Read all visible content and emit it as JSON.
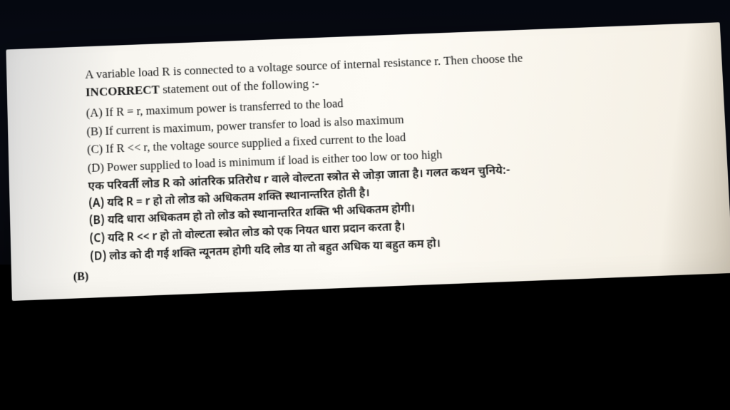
{
  "question": {
    "intro_line1": "A variable load R is connected to a voltage source of internal resistance r. Then choose the",
    "intro_line2_bold": "INCORRECT",
    "intro_line2_rest": " statement out of the following :-",
    "options": {
      "A": "(A) If R = r, maximum power is transferred to the load",
      "B": "(B) If current is maximum, power transfer to load is also maximum",
      "C": "(C) If R << r, the voltage source supplied a fixed current to the load",
      "D": "(D) Power supplied to load is minimum if load is either too low or too high"
    },
    "hindi_intro": "एक परिवर्ती लोड R को आंतरिक प्रतिरोध r वाले वोल्टता स्त्रोत से जोड़ा जाता है। गलत कथन चुनिये:-",
    "hindi_options": {
      "A": "(A) यदि R = r हो तो लोड को अधिकतम शक्ति स्थानान्तरित होती है।",
      "B": "(B) यदि धारा अधिकतम हो तो लोड को स्थानान्तरित शक्ति भी अधिकतम होगी।",
      "C": "(C) यदि R << r हो तो वोल्टता स्त्रोत लोड को एक नियत धारा प्रदान करता है।",
      "D": "(D) लोड को दी गई शक्ति न्यूनतम होगी यदि लोड या तो बहुत अधिक या बहुत कम हो।"
    },
    "answer": "(B)"
  },
  "colors": {
    "page_bg": "#f8f6f0",
    "text": "#1a1a1a",
    "dark": "#000000"
  }
}
